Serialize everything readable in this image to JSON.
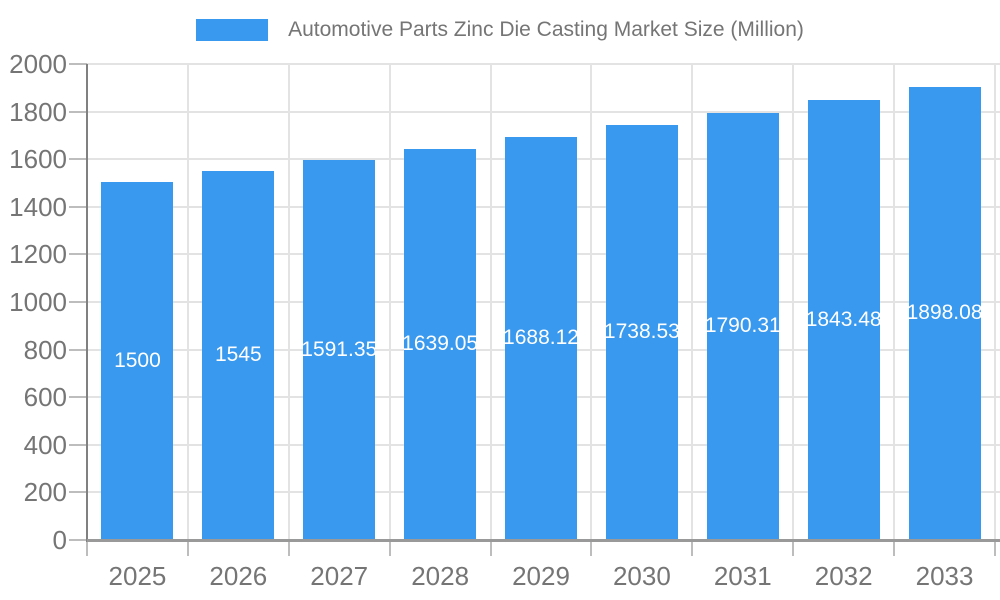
{
  "chart_data": {
    "type": "bar",
    "title": "Automotive Parts Zinc Die Casting Market Size (Million)",
    "legend": {
      "position": "top",
      "label": "Automotive Parts Zinc Die Casting Market Size (Million)"
    },
    "categories": [
      "2025",
      "2026",
      "2027",
      "2028",
      "2029",
      "2030",
      "2031",
      "2032",
      "2033"
    ],
    "values": [
      1500,
      1545,
      1591.35,
      1639.05,
      1688.12,
      1738.53,
      1790.31,
      1843.48,
      1898.08
    ],
    "value_labels": [
      "1500",
      "1545",
      "1591.35",
      "1639.05",
      "1688.12",
      "1738.53",
      "1790.31",
      "1843.48",
      "1898.08"
    ],
    "xlabel": "",
    "ylabel": "",
    "ylim": [
      0,
      2000
    ],
    "ytick_step": 200,
    "yticks": [
      0,
      200,
      400,
      600,
      800,
      1000,
      1200,
      1400,
      1600,
      1800,
      2000
    ],
    "grid": true,
    "colors": {
      "bar": "#3999EE",
      "grid": "#E3E3E3",
      "axis": "#808080",
      "baseline": "#999999",
      "tick": "#BDBDBD",
      "text": "#757575",
      "value_label": "#FFFFFF",
      "background": "#FFFFFF"
    }
  }
}
